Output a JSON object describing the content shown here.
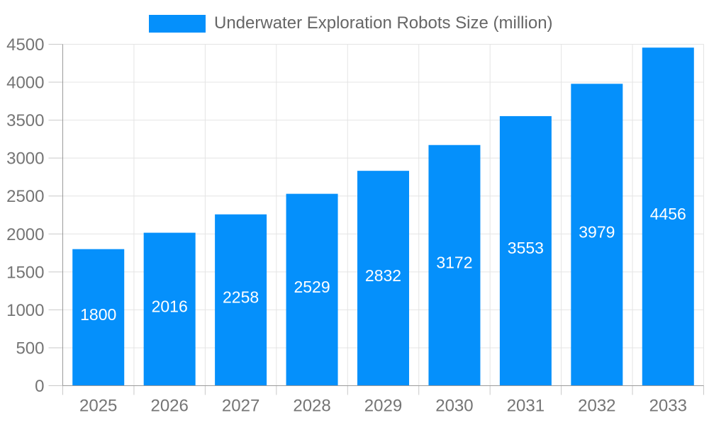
{
  "legend": {
    "label": "Underwater Exploration Robots Size (million)"
  },
  "colors": {
    "bar": "#0590FB",
    "background": "#FFFFFF",
    "axis_line": "#9A9A9A",
    "grid_line": "#E4E4E4",
    "tick_line": "#C9C9C9",
    "axis_text": "#757575",
    "legend_text": "#666666",
    "value_text": "#FFFFFF"
  },
  "chart_data": {
    "type": "bar",
    "title": "",
    "legend_entries": [
      "Underwater Exploration Robots Size (million)"
    ],
    "legend_position": "top-center",
    "categories": [
      "2025",
      "2026",
      "2027",
      "2028",
      "2029",
      "2030",
      "2031",
      "2032",
      "2033"
    ],
    "series": [
      {
        "name": "Underwater Exploration Robots Size (million)",
        "values": [
          1800,
          2016,
          2258,
          2529,
          2832,
          3172,
          3553,
          3979,
          4456
        ]
      }
    ],
    "xlabel": "",
    "ylabel": "",
    "ylim": [
      0,
      4500
    ],
    "ytick_step": 500,
    "yticks": [
      "0",
      "500",
      "1000",
      "1500",
      "2000",
      "2500",
      "3000",
      "3500",
      "4000",
      "4500"
    ],
    "grid": true,
    "value_labels": "inside-center"
  }
}
